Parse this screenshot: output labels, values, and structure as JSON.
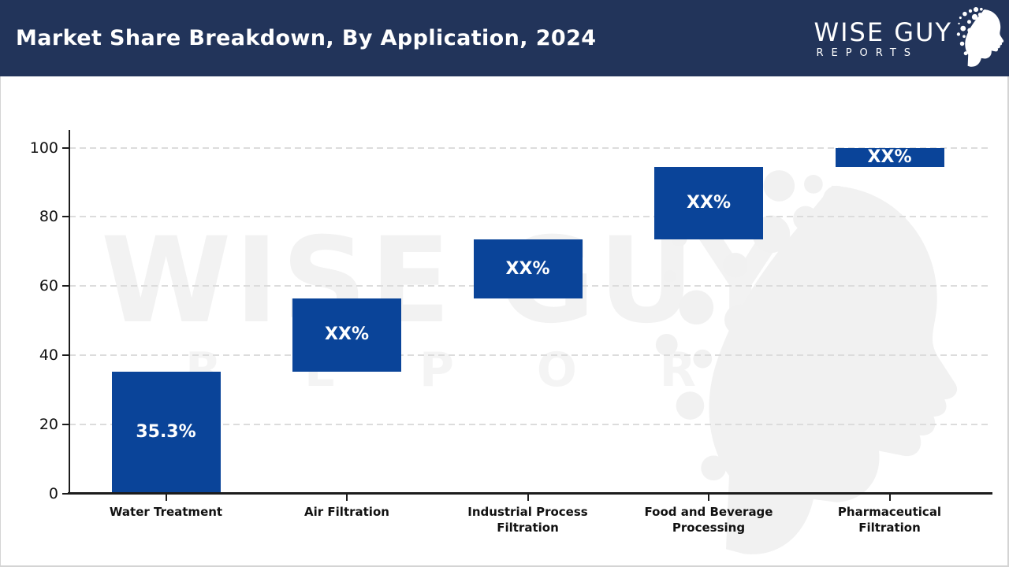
{
  "header": {
    "title": "Market Share Breakdown, By Application, 2024",
    "bg_color": "#22345a",
    "title_color": "#ffffff",
    "logo": {
      "line1": "WISE GUY",
      "line2": "REPORTS",
      "icon": "head-profile-dots-icon"
    }
  },
  "watermark": {
    "line1": "WISE GUY",
    "line2": "R E P O R T S",
    "icon": "head-profile-dots-icon",
    "color": "#f2f2f2"
  },
  "chart_data": {
    "type": "bar",
    "subtype": "waterfall",
    "title": "Market Share Breakdown, By Application, 2024",
    "categories": [
      "Water Treatment",
      "Air Filtration",
      "Industrial Process\nFiltration",
      "Food and Beverage\nProcessing",
      "Pharmaceutical\nFiltration"
    ],
    "segments": [
      {
        "category": "Water Treatment",
        "start": 0,
        "end": 35.3,
        "value": 35.3,
        "label": "35.3%"
      },
      {
        "category": "Air Filtration",
        "start": 35.3,
        "end": 56.5,
        "value": 21.2,
        "label": "XX%"
      },
      {
        "category": "Industrial Process Filtration",
        "start": 56.5,
        "end": 73.4,
        "value": 16.9,
        "label": "XX%"
      },
      {
        "category": "Food and Beverage Processing",
        "start": 73.4,
        "end": 94.5,
        "value": 21.1,
        "label": "XX%"
      },
      {
        "category": "Pharmaceutical Filtration",
        "start": 94.5,
        "end": 100,
        "value": 5.5,
        "label": "XX%"
      }
    ],
    "yticks": [
      0,
      20,
      40,
      60,
      80,
      100
    ],
    "ylim": [
      0,
      105
    ],
    "xlabel": "",
    "ylabel": "",
    "grid": "horizontal-dashed",
    "legend": "none",
    "bar_color": "#0a4499",
    "grid_color": "#dcdcdc",
    "axis_color": "#1c1c1c",
    "bar_label_color": "#ffffff"
  }
}
